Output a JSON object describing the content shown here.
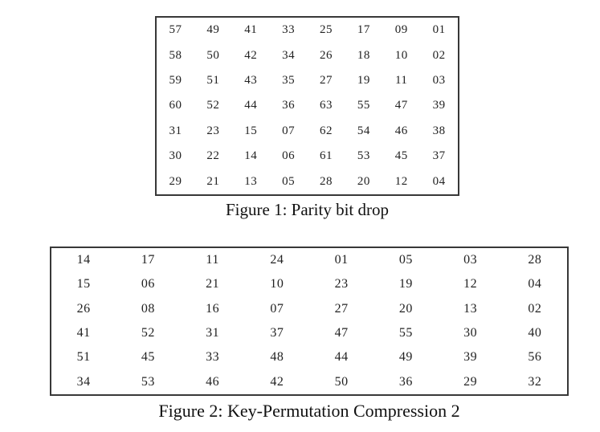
{
  "colors": {
    "background": "#ffffff",
    "text": "#222222",
    "border": "#383838"
  },
  "figure1": {
    "caption": "Figure 1: Parity bit drop",
    "rows": [
      [
        "57",
        "49",
        "41",
        "33",
        "25",
        "17",
        "09",
        "01"
      ],
      [
        "58",
        "50",
        "42",
        "34",
        "26",
        "18",
        "10",
        "02"
      ],
      [
        "59",
        "51",
        "43",
        "35",
        "27",
        "19",
        "11",
        "03"
      ],
      [
        "60",
        "52",
        "44",
        "36",
        "63",
        "55",
        "47",
        "39"
      ],
      [
        "31",
        "23",
        "15",
        "07",
        "62",
        "54",
        "46",
        "38"
      ],
      [
        "30",
        "22",
        "14",
        "06",
        "61",
        "53",
        "45",
        "37"
      ],
      [
        "29",
        "21",
        "13",
        "05",
        "28",
        "20",
        "12",
        "04"
      ]
    ]
  },
  "figure2": {
    "caption": "Figure 2: Key-Permutation Compression 2",
    "rows": [
      [
        "14",
        "17",
        "11",
        "24",
        "01",
        "05",
        "03",
        "28"
      ],
      [
        "15",
        "06",
        "21",
        "10",
        "23",
        "19",
        "12",
        "04"
      ],
      [
        "26",
        "08",
        "16",
        "07",
        "27",
        "20",
        "13",
        "02"
      ],
      [
        "41",
        "52",
        "31",
        "37",
        "47",
        "55",
        "30",
        "40"
      ],
      [
        "51",
        "45",
        "33",
        "48",
        "44",
        "49",
        "39",
        "56"
      ],
      [
        "34",
        "53",
        "46",
        "42",
        "50",
        "36",
        "29",
        "32"
      ]
    ]
  }
}
